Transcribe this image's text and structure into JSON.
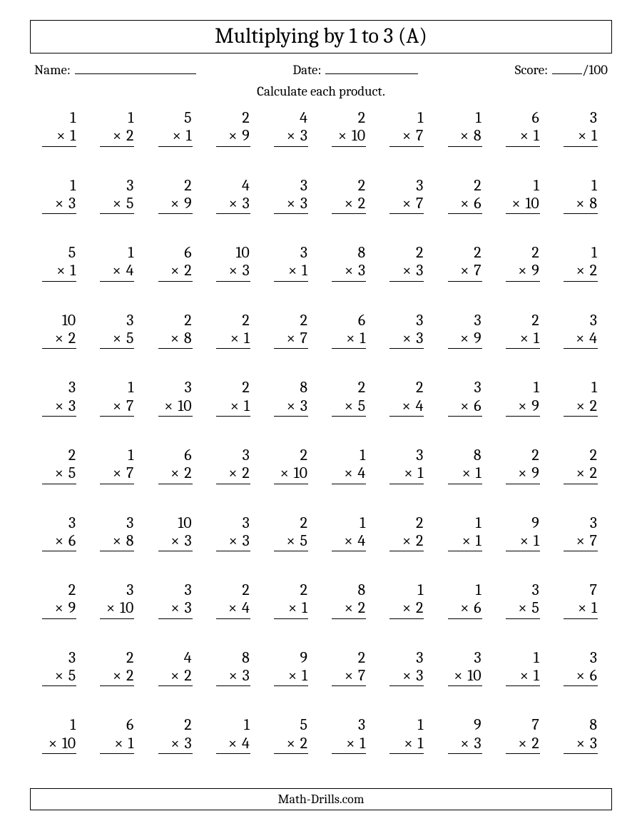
{
  "title": "Multiplying by 1 to 3 (A)",
  "labels": {
    "name": "Name:",
    "date": "Date:",
    "score": "Score:",
    "score_suffix": "/100"
  },
  "instruction": "Calculate each product.",
  "mult_sign": "×",
  "footer": "Math-Drills.com",
  "style": {
    "grid_cols": 10,
    "font_size_title": 30,
    "font_size_body": 19,
    "font_size_problem": 22,
    "border_color": "#000000",
    "background_color": "#ffffff",
    "text_color": "#000000"
  },
  "problems": [
    [
      1,
      1
    ],
    [
      1,
      2
    ],
    [
      5,
      1
    ],
    [
      2,
      9
    ],
    [
      4,
      3
    ],
    [
      2,
      10
    ],
    [
      1,
      7
    ],
    [
      1,
      8
    ],
    [
      6,
      1
    ],
    [
      3,
      1
    ],
    [
      1,
      3
    ],
    [
      3,
      5
    ],
    [
      2,
      9
    ],
    [
      4,
      3
    ],
    [
      3,
      3
    ],
    [
      2,
      2
    ],
    [
      3,
      7
    ],
    [
      2,
      6
    ],
    [
      1,
      10
    ],
    [
      1,
      8
    ],
    [
      5,
      1
    ],
    [
      1,
      4
    ],
    [
      6,
      2
    ],
    [
      10,
      3
    ],
    [
      3,
      1
    ],
    [
      8,
      3
    ],
    [
      2,
      3
    ],
    [
      2,
      7
    ],
    [
      2,
      9
    ],
    [
      1,
      2
    ],
    [
      10,
      2
    ],
    [
      3,
      5
    ],
    [
      2,
      8
    ],
    [
      2,
      1
    ],
    [
      2,
      7
    ],
    [
      6,
      1
    ],
    [
      3,
      3
    ],
    [
      3,
      9
    ],
    [
      2,
      1
    ],
    [
      3,
      4
    ],
    [
      3,
      3
    ],
    [
      1,
      7
    ],
    [
      3,
      10
    ],
    [
      2,
      1
    ],
    [
      8,
      3
    ],
    [
      2,
      5
    ],
    [
      2,
      4
    ],
    [
      3,
      6
    ],
    [
      1,
      9
    ],
    [
      1,
      2
    ],
    [
      2,
      5
    ],
    [
      1,
      7
    ],
    [
      6,
      2
    ],
    [
      3,
      2
    ],
    [
      2,
      10
    ],
    [
      1,
      4
    ],
    [
      3,
      1
    ],
    [
      8,
      1
    ],
    [
      2,
      9
    ],
    [
      2,
      2
    ],
    [
      3,
      6
    ],
    [
      3,
      8
    ],
    [
      10,
      3
    ],
    [
      3,
      3
    ],
    [
      2,
      5
    ],
    [
      1,
      4
    ],
    [
      2,
      2
    ],
    [
      1,
      1
    ],
    [
      9,
      1
    ],
    [
      3,
      7
    ],
    [
      2,
      9
    ],
    [
      3,
      10
    ],
    [
      3,
      3
    ],
    [
      2,
      4
    ],
    [
      2,
      1
    ],
    [
      8,
      2
    ],
    [
      1,
      2
    ],
    [
      1,
      6
    ],
    [
      3,
      5
    ],
    [
      7,
      1
    ],
    [
      3,
      5
    ],
    [
      2,
      2
    ],
    [
      4,
      2
    ],
    [
      8,
      3
    ],
    [
      9,
      1
    ],
    [
      2,
      7
    ],
    [
      3,
      3
    ],
    [
      3,
      10
    ],
    [
      1,
      1
    ],
    [
      3,
      6
    ],
    [
      1,
      10
    ],
    [
      6,
      1
    ],
    [
      2,
      3
    ],
    [
      1,
      4
    ],
    [
      5,
      2
    ],
    [
      3,
      1
    ],
    [
      1,
      1
    ],
    [
      9,
      3
    ],
    [
      7,
      2
    ],
    [
      8,
      3
    ]
  ]
}
